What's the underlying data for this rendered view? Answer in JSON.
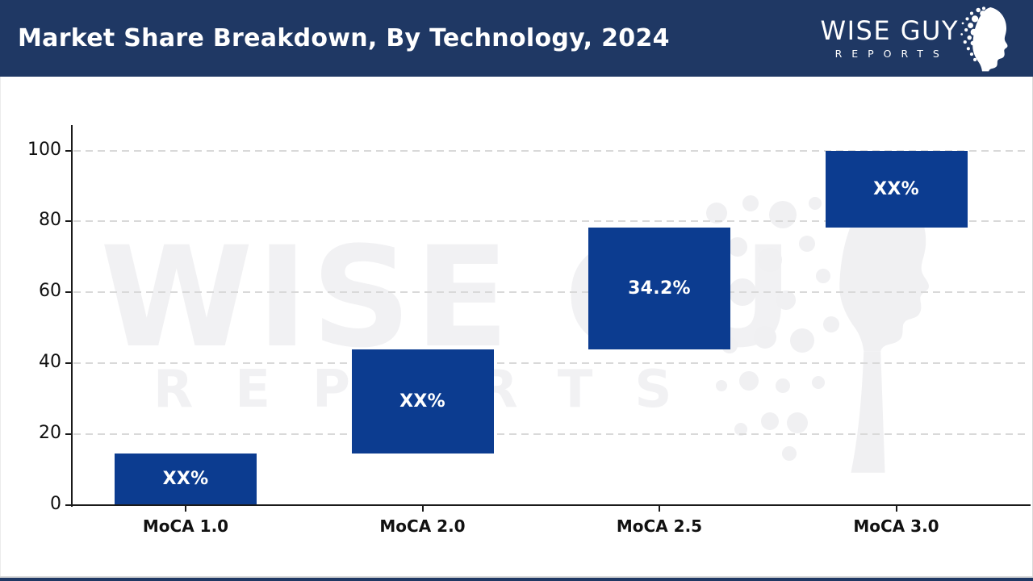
{
  "header": {
    "title": "Market Share Breakdown, By Technology, 2024",
    "logo": {
      "line1": "WISE GUY",
      "line2": "REPORTS"
    }
  },
  "watermark": {
    "line1": "WISE GU",
    "line2": "REPORTS"
  },
  "colors": {
    "header_bg": "#1f3864",
    "bar": "#0c3c90",
    "grid": "#d9d9d9",
    "axis": "#1a1a1a",
    "bar_label": "#ffffff",
    "watermark": "#f1f1f3"
  },
  "chart_data": {
    "type": "bar",
    "subtype": "floating-waterfall",
    "title": "Market Share Breakdown, By Technology, 2024",
    "categories": [
      "MoCA 1.0",
      "MoCA 2.0",
      "MoCA 2.5",
      "MoCA 3.0"
    ],
    "segments": [
      {
        "category": "MoCA 1.0",
        "start": 0,
        "end": 14.6,
        "label": "XX%"
      },
      {
        "category": "MoCA 2.0",
        "start": 14.6,
        "end": 44.0,
        "label": "XX%"
      },
      {
        "category": "MoCA 2.5",
        "start": 44.0,
        "end": 78.2,
        "label": "34.2%"
      },
      {
        "category": "MoCA 3.0",
        "start": 78.2,
        "end": 100.0,
        "label": "XX%"
      }
    ],
    "bar_labels": [
      "XX%",
      "XX%",
      "34.2%",
      "XX%"
    ],
    "yticks": [
      0,
      20,
      40,
      60,
      80,
      100
    ],
    "ylim": [
      0,
      107
    ],
    "xlabel": "",
    "ylabel": "",
    "legend": "none",
    "grid": "horizontal-dashed"
  }
}
